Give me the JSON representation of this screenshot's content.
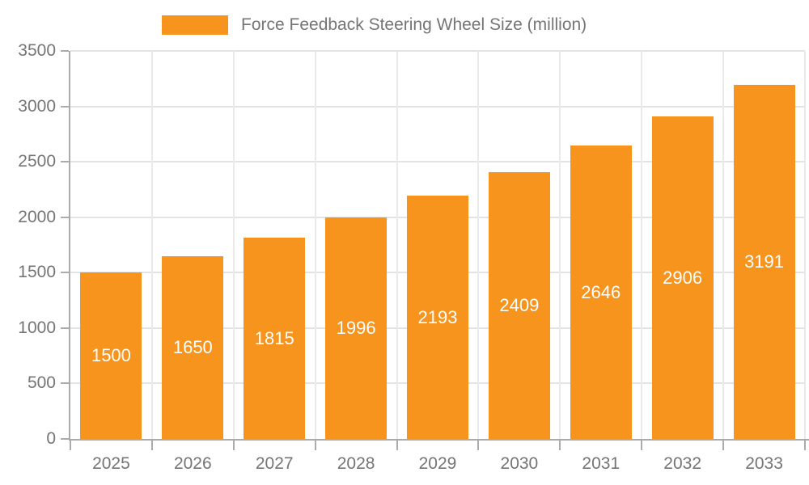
{
  "legend": {
    "label": "Force Feedback Steering Wheel Size (million)"
  },
  "chart_data": {
    "type": "bar",
    "title": "Force Feedback Steering Wheel Size (million)",
    "categories": [
      "2025",
      "2026",
      "2027",
      "2028",
      "2029",
      "2030",
      "2031",
      "2032",
      "2033"
    ],
    "values": [
      1500,
      1650,
      1815,
      1996,
      2193,
      2409,
      2646,
      2906,
      3191
    ],
    "xlabel": "",
    "ylabel": "",
    "ylim": [
      0,
      3500
    ],
    "ytick_step": 500,
    "grid": true,
    "legend_position": "top",
    "colors": {
      "bar": "#F7941E",
      "value_label": "#FFFFFF",
      "axis_text": "#757575",
      "axis_line": "#ABABAB",
      "grid_horizontal": "#E3E3E3",
      "grid_vertical": "#EAEAEA"
    }
  }
}
